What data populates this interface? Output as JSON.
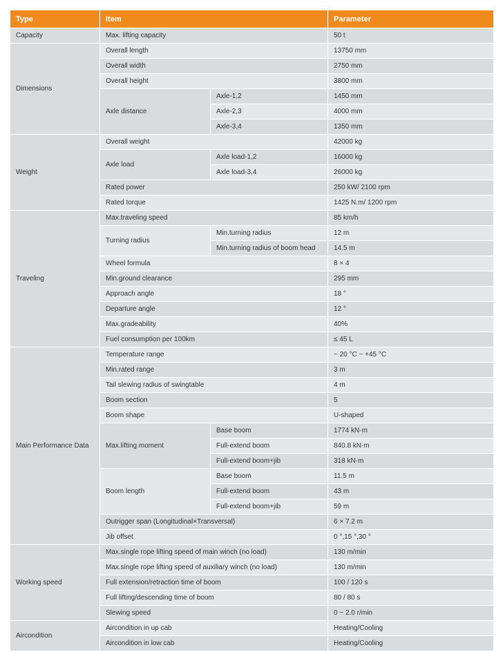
{
  "header": {
    "type": "Type",
    "item": "Item",
    "parameter": "Parameter"
  },
  "colors": {
    "header_bg": "#f08a1d",
    "header_text": "#ffffff",
    "row_bg_a": "#d9dbdc",
    "row_bg_b": "#e6e7e8",
    "border": "#ffffff",
    "text": "#333333"
  },
  "rows": [
    {
      "type": "Capacity",
      "type_rowspan": 1,
      "item1": "Max. lifting capacity",
      "item1_colspan": 2,
      "param": "50 t"
    },
    {
      "type": "Dimensions",
      "type_rowspan": 6,
      "item1": "Overall length",
      "item1_colspan": 2,
      "param": "13750 mm"
    },
    {
      "item1": "Overall width",
      "item1_colspan": 2,
      "param": "2750 mm"
    },
    {
      "item1": "Overall height",
      "item1_colspan": 2,
      "param": "3800 mm"
    },
    {
      "item1": "Axle distance",
      "item1_rowspan": 3,
      "item2": "Axle-1,2",
      "param": "1450 mm"
    },
    {
      "item2": "Axle-2,3",
      "param": "4000 mm"
    },
    {
      "item2": "Axle-3,4",
      "param": "1350 mm"
    },
    {
      "type": "Weight",
      "type_rowspan": 5,
      "item1": "Overall weight",
      "item1_colspan": 2,
      "param": "42000 kg"
    },
    {
      "item1": "Axle load",
      "item1_rowspan": 2,
      "item2": "Axle load-1,2",
      "param": "16000 kg"
    },
    {
      "item2": "Axle load-3,4",
      "param": "26000 kg"
    },
    {
      "item1": "Rated power",
      "item1_colspan": 2,
      "param": "250 kW/ 2100 rpm"
    },
    {
      "item1": "Rated torque",
      "item1_colspan": 2,
      "param": "1425 N.m/ 1200 rpm"
    },
    {
      "type": "Traveling",
      "type_rowspan": 9,
      "item1": "Max.traveling speed",
      "item1_colspan": 2,
      "param": "85 km/h"
    },
    {
      "item1": "Turning radius",
      "item1_rowspan": 2,
      "item2": "Min.turning radius",
      "param": "12 m"
    },
    {
      "item2": "Min.turning radius of boom head",
      "param": "14.5 m"
    },
    {
      "item1": "Wheel formula",
      "item1_colspan": 2,
      "param": "8 × 4"
    },
    {
      "item1": "Min.ground clearance",
      "item1_colspan": 2,
      "param": "295 mm"
    },
    {
      "item1": "Approach angle",
      "item1_colspan": 2,
      "param": "18 °"
    },
    {
      "item1": "Departure angle",
      "item1_colspan": 2,
      "param": "12 °"
    },
    {
      "item1": "Max.gradeability",
      "item1_colspan": 2,
      "param": "40%"
    },
    {
      "item1": "Fuel consumption per 100km",
      "item1_colspan": 2,
      "param": "≤ 45 L"
    },
    {
      "type": "Main Performance Data",
      "type_rowspan": 13,
      "item1": "Temperature range",
      "item1_colspan": 2,
      "param": "− 20 °C ~ +45 °C"
    },
    {
      "item1": "Min.rated range",
      "item1_colspan": 2,
      "param": "3 m"
    },
    {
      "item1": "Tail slewing radius of swingtable",
      "item1_colspan": 2,
      "param": "4 m"
    },
    {
      "item1": "Boom section",
      "item1_colspan": 2,
      "param": "5"
    },
    {
      "item1": "Boom shape",
      "item1_colspan": 2,
      "param": "U-shaped"
    },
    {
      "item1": "Max.lifting moment",
      "item1_rowspan": 3,
      "item2": "Base boom",
      "param": "1774 kN·m"
    },
    {
      "item2": "Full-extend boom",
      "param": "840.8 kN·m"
    },
    {
      "item2": "Full-extend boom+jib",
      "param": "318 kN·m"
    },
    {
      "item1": "Boom length",
      "item1_rowspan": 3,
      "item2": "Base boom",
      "param": "11.5 m"
    },
    {
      "item2": "Full-extend boom",
      "param": "43 m"
    },
    {
      "item2": "Full-extend boom+jib",
      "param": "59 m"
    },
    {
      "item1": "Outrigger span (Longitudinal×Transversal)",
      "item1_colspan": 2,
      "param": "6 × 7.2 m"
    },
    {
      "item1": "Jib offset",
      "item1_colspan": 2,
      "param": "0 °,15 °,30 °"
    },
    {
      "type": "Working speed",
      "type_rowspan": 5,
      "item1": "Max.single rope lifting speed of main winch (no load)",
      "item1_colspan": 2,
      "param": "130  m/min"
    },
    {
      "item1": "Max.single rope lifting speed of auxiliary winch (no load)",
      "item1_colspan": 2,
      "param": "130  m/min"
    },
    {
      "item1": "Full extension/retraction time of boom",
      "item1_colspan": 2,
      "param": "100 / 120 s"
    },
    {
      "item1": "Full lifting/descending time of boom",
      "item1_colspan": 2,
      "param": "80 / 80 s"
    },
    {
      "item1": "Slewing speed",
      "item1_colspan": 2,
      "param": "0 ~ 2.0 r/min"
    },
    {
      "type": "Aircondition",
      "type_rowspan": 2,
      "item1": "Aircondition in up cab",
      "item1_colspan": 2,
      "param": "Heating/Cooling"
    },
    {
      "item1": "Aircondition in low cab",
      "item1_colspan": 2,
      "param": "Heating/Cooling"
    }
  ]
}
